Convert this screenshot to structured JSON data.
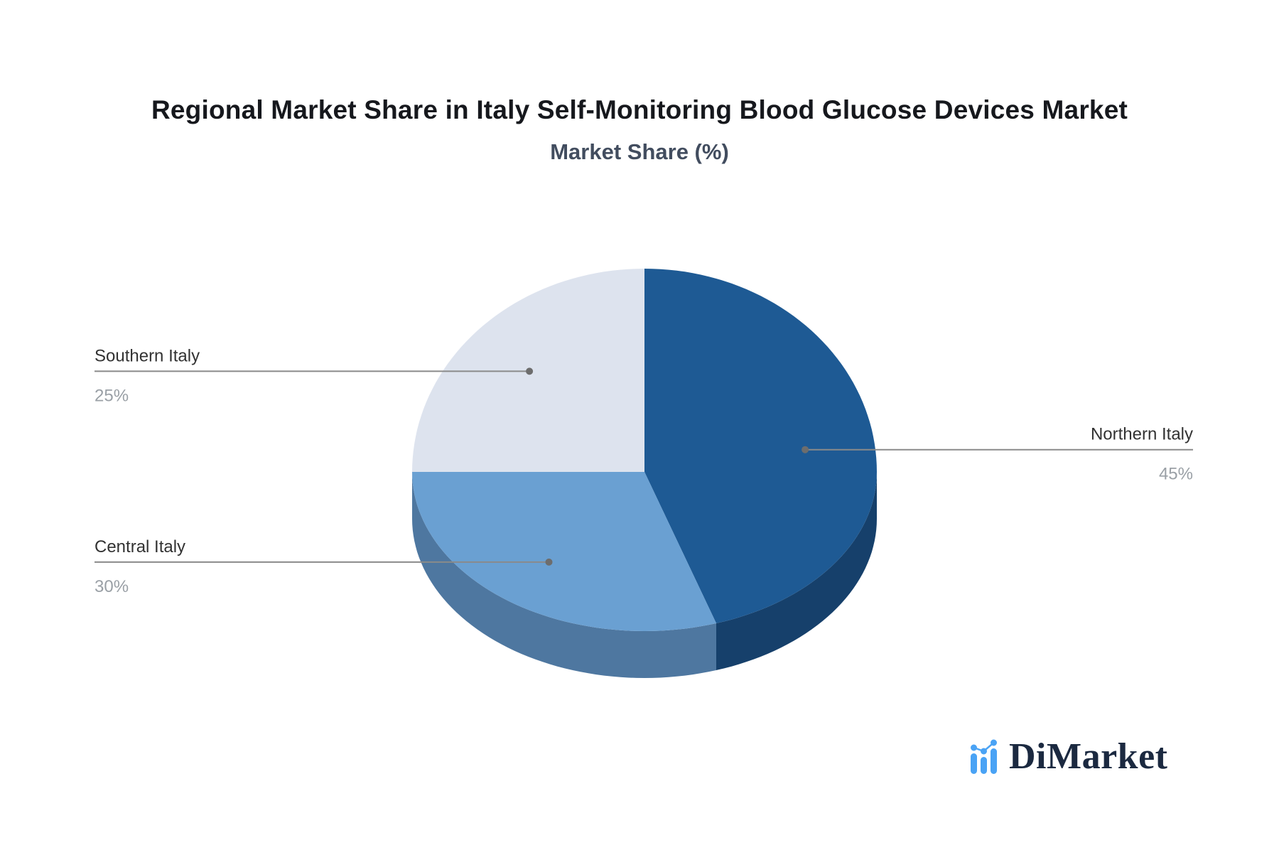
{
  "chart_data": {
    "type": "pie",
    "style": "3d",
    "title": "Regional Market Share in Italy Self-Monitoring Blood Glucose Devices Market",
    "subtitle": "Market Share (%)",
    "unit": "%",
    "start_angle_deg": 90,
    "direction": "clockwise",
    "legend": "none",
    "slices": [
      {
        "label": "Northern Italy",
        "value": 45,
        "pct_label": "45%",
        "color": "#1e5a94",
        "side_color": "#16406b",
        "label_side": "right"
      },
      {
        "label": "Central Italy",
        "value": 30,
        "pct_label": "30%",
        "color": "#6aa0d2",
        "side_color": "#4e77a0",
        "label_side": "left"
      },
      {
        "label": "Southern Italy",
        "value": 25,
        "pct_label": "25%",
        "color": "#dde3ee",
        "label_side": "left"
      }
    ],
    "labels_color": "#323232",
    "pct_color": "#9aa0a6",
    "leader_line_color": "#8a8a8a",
    "leader_dot_color": "#6d6d6d"
  },
  "branding": {
    "logo_text": "DiMarket",
    "logo_text_color": "#1b2940",
    "logo_accent_color": "#4aa3f5"
  }
}
